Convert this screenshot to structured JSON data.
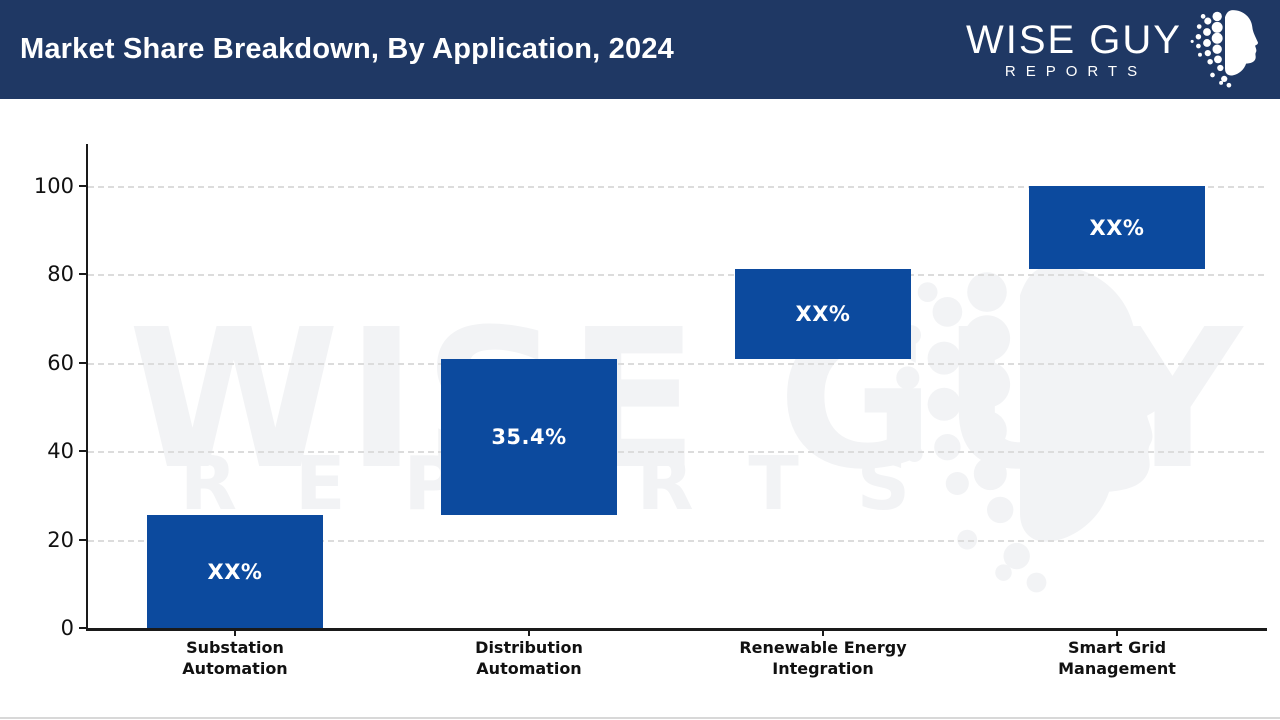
{
  "header": {
    "title": "Market Share Breakdown, By Application, 2024",
    "logo": {
      "name": "WISE GUY",
      "sub": "REPORTS"
    }
  },
  "watermark": {
    "name": "WISE GUY",
    "sub": "REPORTS"
  },
  "colors": {
    "header_bg": "#1f3864",
    "bar": "#0c4a9e",
    "bar_label": "#ffffff",
    "grid": "#dcdcdc",
    "axis": "#1a1a1a",
    "watermark": "#f2f3f5"
  },
  "chart_data": {
    "type": "bar",
    "subtype": "waterfall",
    "title": "Market Share Breakdown, By Application, 2024",
    "categories": [
      "Substation Automation",
      "Distribution Automation",
      "Renewable Energy Integration",
      "Smart Grid Management"
    ],
    "category_lines": [
      [
        "Substation",
        "Automation"
      ],
      [
        "Distribution",
        "Automation"
      ],
      [
        "Renewable Energy",
        "Integration"
      ],
      [
        "Smart Grid",
        "Management"
      ]
    ],
    "segments": [
      {
        "category": "Substation Automation",
        "start": 0,
        "end": 25.5,
        "value_label": "XX%"
      },
      {
        "category": "Distribution Automation",
        "start": 25.5,
        "end": 60.9,
        "value_label": "35.4%"
      },
      {
        "category": "Renewable Energy Integration",
        "start": 60.9,
        "end": 81.2,
        "value_label": "XX%"
      },
      {
        "category": "Smart Grid Management",
        "start": 81.2,
        "end": 100,
        "value_label": "XX%"
      }
    ],
    "xlabel": "",
    "ylabel": "",
    "ylim": [
      0,
      100
    ],
    "yticks": [
      0,
      20,
      40,
      60,
      80,
      100
    ],
    "grid": "horizontal-dashed",
    "legend": "none"
  }
}
